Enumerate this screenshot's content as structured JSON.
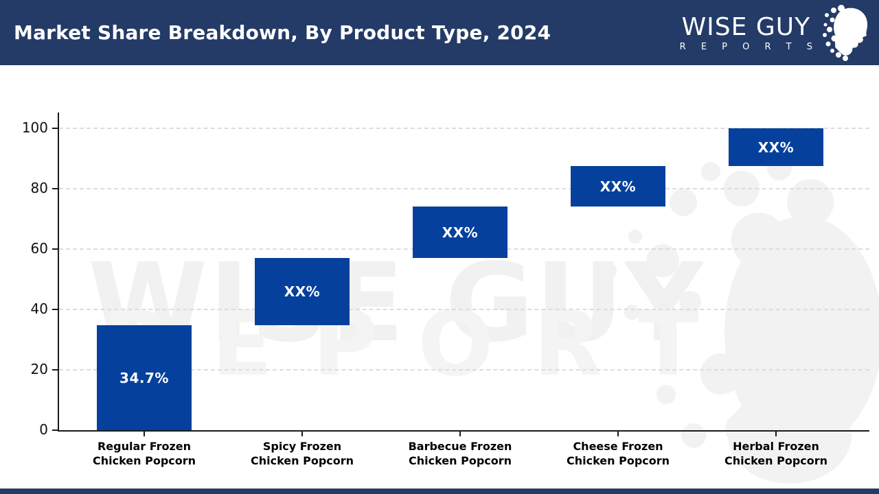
{
  "header": {
    "title": "Market Share Breakdown, By Product Type, 2024",
    "logo": {
      "name": "WISE GUY",
      "tagline": "R E P O R T S"
    }
  },
  "watermark": {
    "line1": "WISE GUY",
    "line2": "REPORTS"
  },
  "colors": {
    "header_bg": "#243b67",
    "footer_bg": "#243b67",
    "bar": "#05419c",
    "bar_label_text": "#ffffff",
    "gridline": "#dcdcdc",
    "axis": "#1a1a1a",
    "category_text": "#000000",
    "watermark": "#f1f1f2"
  },
  "chart_data": {
    "type": "bar",
    "subtype": "waterfall",
    "title": "Market Share Breakdown, By Product Type, 2024",
    "xlabel": "",
    "ylabel": "",
    "ylim": [
      0,
      100
    ],
    "yticks": [
      0,
      20,
      40,
      60,
      80,
      100
    ],
    "grid": "horizontal-dashed",
    "legend": "none",
    "categories": [
      "Regular Frozen Chicken Popcorn",
      "Spicy Frozen Chicken Popcorn",
      "Barbecue Frozen Chicken Popcorn",
      "Cheese Frozen Chicken Popcorn",
      "Herbal Frozen Chicken Popcorn"
    ],
    "category_lines": [
      [
        "Regular Frozen",
        "Chicken Popcorn"
      ],
      [
        "Spicy Frozen",
        "Chicken Popcorn"
      ],
      [
        "Barbecue Frozen",
        "Chicken Popcorn"
      ],
      [
        "Cheese Frozen",
        "Chicken Popcorn"
      ],
      [
        "Herbal Frozen",
        "Chicken Popcorn"
      ]
    ],
    "segments": [
      {
        "start": 0,
        "end": 34.7,
        "label": "34.7%"
      },
      {
        "start": 34.7,
        "end": 57,
        "label": "XX%"
      },
      {
        "start": 57,
        "end": 74,
        "label": "XX%"
      },
      {
        "start": 74,
        "end": 87.5,
        "label": "XX%"
      },
      {
        "start": 87.5,
        "end": 100,
        "label": "XX%"
      }
    ]
  }
}
